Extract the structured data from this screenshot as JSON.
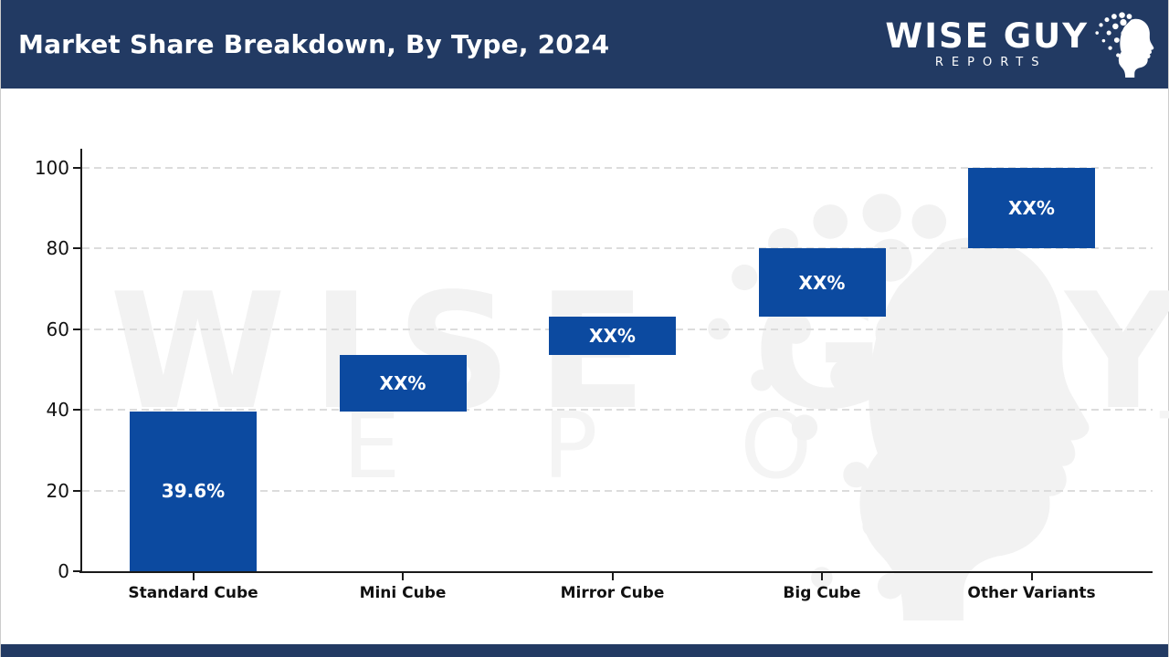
{
  "header": {
    "title": "Market Share Breakdown, By Type, 2024",
    "logo": {
      "line1": "WISE GUY",
      "line2": "REPORTS"
    }
  },
  "watermark": {
    "line1": "WISE GUY",
    "line2": "REPORTS"
  },
  "footer": {},
  "icons": {
    "logo_face": "dotted-head-profile-icon"
  },
  "colors": {
    "header_bg": "#223a63",
    "footer_bg": "#223a63",
    "bar": "#0c4aa0",
    "grid": "#dcdcdc",
    "axis": "#1a1a1a",
    "bar_label": "#ffffff",
    "watermark": "#f2f2f2"
  },
  "chart_data": {
    "type": "bar",
    "subtype": "waterfall",
    "title": "Market Share Breakdown, By Type, 2024",
    "categories": [
      "Standard Cube",
      "Mini Cube",
      "Mirror Cube",
      "Big Cube",
      "Other Variants"
    ],
    "segments": [
      {
        "category": "Standard Cube",
        "start": 0,
        "end": 39.6,
        "label": "39.6%"
      },
      {
        "category": "Mini Cube",
        "start": 39.6,
        "end": 53.5,
        "label": "XX%"
      },
      {
        "category": "Mirror Cube",
        "start": 53.5,
        "end": 63,
        "label": "XX%"
      },
      {
        "category": "Big Cube",
        "start": 63,
        "end": 80,
        "label": "XX%"
      },
      {
        "category": "Other Variants",
        "start": 80,
        "end": 100,
        "label": "XX%"
      }
    ],
    "xlabel": "",
    "ylabel": "",
    "yticks": [
      0,
      20,
      40,
      60,
      80,
      100
    ],
    "ylim": [
      0,
      105
    ],
    "grid": "horizontal-dashed",
    "legend": "none",
    "bar_color": "#0c4aa0",
    "value_label_color": "#ffffff"
  }
}
